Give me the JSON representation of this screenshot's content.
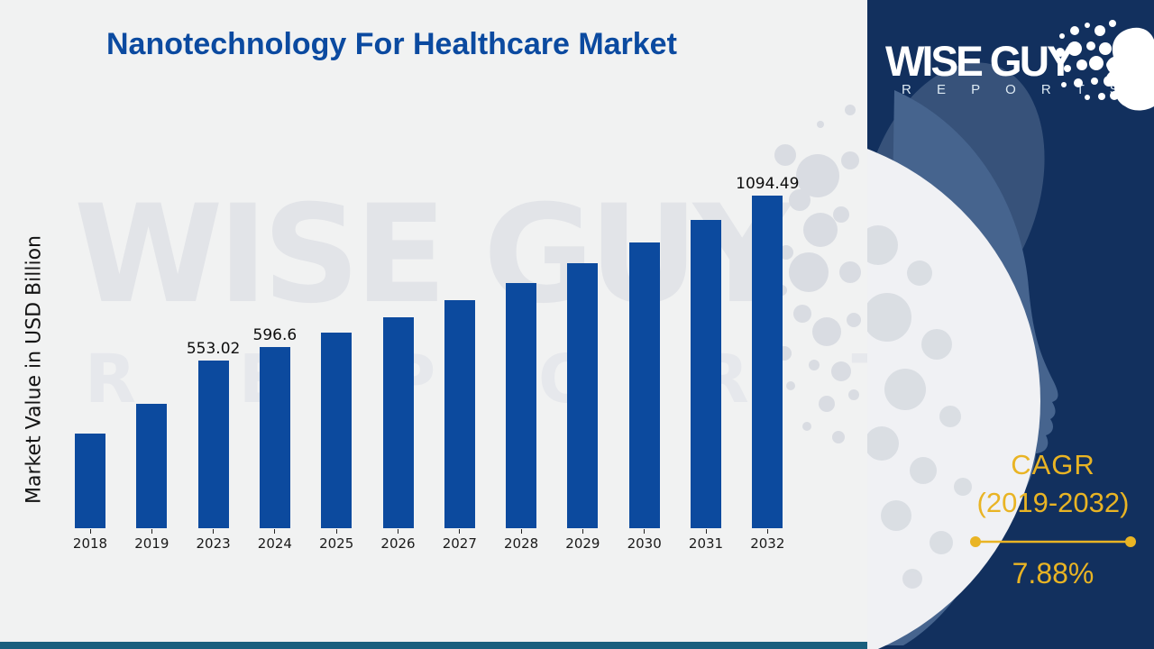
{
  "title": "Nanotechnology For Healthcare Market",
  "watermark": {
    "line1": "WISE GUY",
    "line2": "R E P O R T S"
  },
  "logo": {
    "line1": "WISE GUY",
    "line2": "R E P O R T S"
  },
  "cagr": {
    "heading": "CAGR",
    "range": "(2019-2032)",
    "value": "7.88%"
  },
  "colors": {
    "page_bg": "#f1f2f2",
    "bar_blue": "#0c4a9e",
    "title_blue": "#0b4aa0",
    "panel_navy": "#12305e",
    "accent_gold": "#e9b424",
    "band_teal": "#1a5f7e"
  },
  "chart_data": {
    "type": "bar",
    "title": "Nanotechnology For Healthcare Market",
    "xlabel": "",
    "ylabel": "Market Value in USD Billion",
    "categories": [
      "2018",
      "2019",
      "2023",
      "2024",
      "2025",
      "2026",
      "2027",
      "2028",
      "2029",
      "2030",
      "2031",
      "2032"
    ],
    "values": [
      310.9,
      408.3,
      553.02,
      596.6,
      643.6,
      694.3,
      749.1,
      808.1,
      871.8,
      940.5,
      1014.6,
      1094.49
    ],
    "data_labels": [
      "",
      "",
      "553.02",
      "596.6",
      "",
      "",
      "",
      "",
      "",
      "",
      "",
      "1094.49"
    ],
    "ylim": [
      0,
      1150
    ],
    "grid": false,
    "legend": "none",
    "annotation": "CAGR (2019-2032) 7.88%"
  }
}
